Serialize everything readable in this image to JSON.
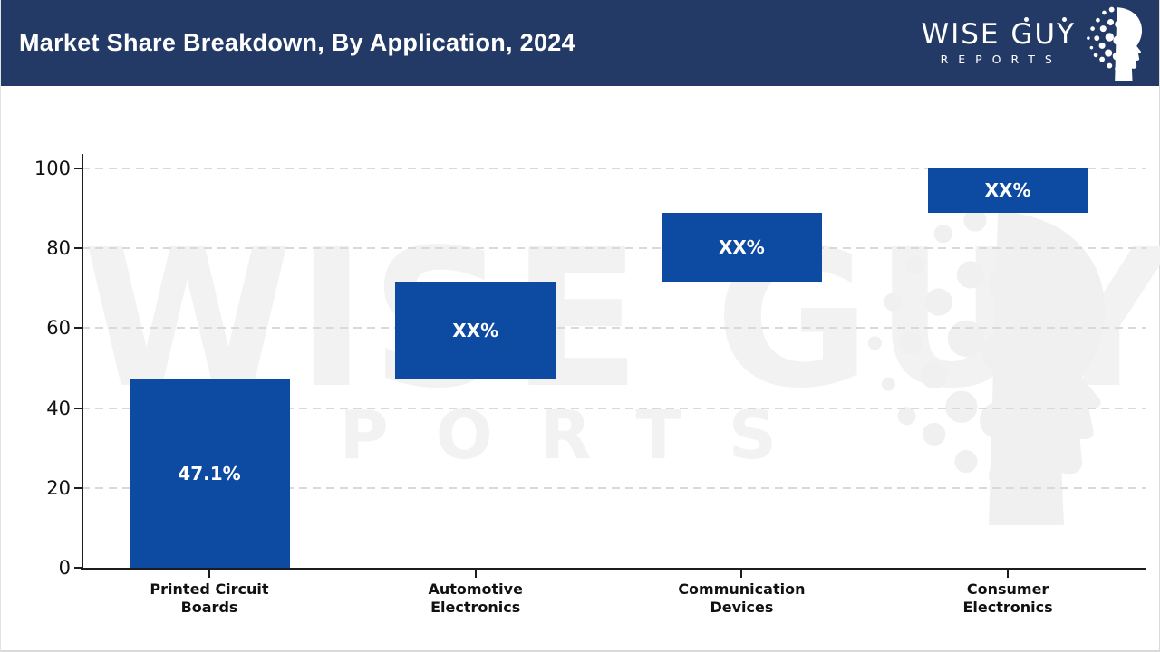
{
  "header": {
    "bg": "#243a66",
    "title": "Market Share Breakdown, By Application, 2024",
    "logo": {
      "name": "WISE GUY",
      "sub": "REPORTS"
    }
  },
  "watermark": {
    "main": "WISE GUY",
    "sub": "REPORTS"
  },
  "chart_data": {
    "type": "bar",
    "variant": "waterfall",
    "title": "Market Share Breakdown, By Application, 2024",
    "categories": [
      {
        "lines": [
          "Printed Circuit",
          "Boards"
        ]
      },
      {
        "lines": [
          "Automotive",
          "Electronics"
        ]
      },
      {
        "lines": [
          "Communication",
          "Devices"
        ]
      },
      {
        "lines": [
          "Consumer",
          "Electronics"
        ]
      }
    ],
    "segments": [
      {
        "start": 0,
        "end": 47.1,
        "label": "47.1%"
      },
      {
        "start": 47.1,
        "end": 71.6,
        "label": "XX%"
      },
      {
        "start": 71.6,
        "end": 88.9,
        "label": "XX%"
      },
      {
        "start": 88.9,
        "end": 100,
        "label": "XX%"
      }
    ],
    "y_ticks": [
      0,
      20,
      40,
      60,
      80,
      100
    ],
    "ylim": [
      0,
      103.5
    ],
    "xlabel": "",
    "ylabel": "",
    "legend": "none",
    "grid": "horizontal-dashed",
    "bar_color": "#0d4aa2",
    "bar_label_color": "#ffffff",
    "grid_color": "#d9d9d9",
    "axis_color": "#1c1c1c",
    "tick_label_color": "#111111"
  }
}
